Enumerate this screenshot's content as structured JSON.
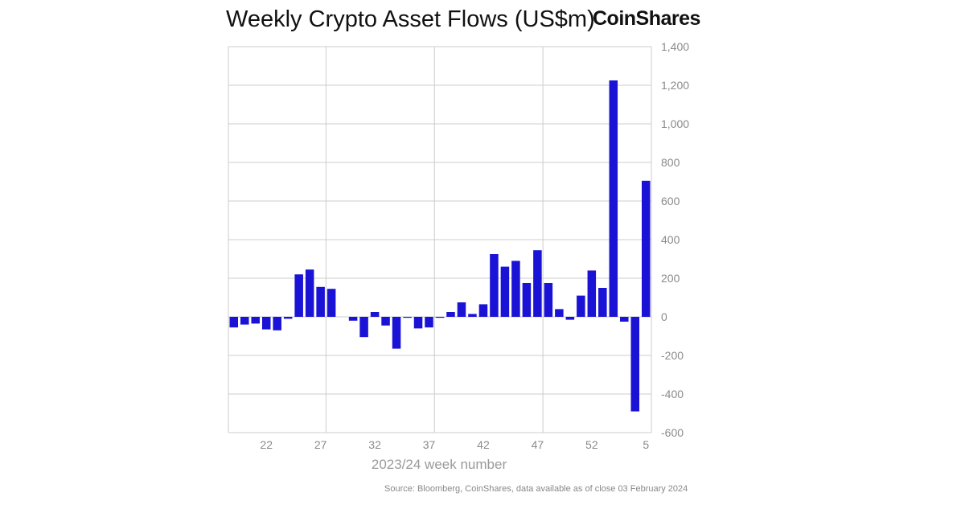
{
  "header": {
    "title": "Weekly Crypto Asset Flows (US$m)",
    "brand": "CoinShares"
  },
  "footer": {
    "source": "Source: Bloomberg, CoinShares, data available as of close 03 February 2024"
  },
  "colors": {
    "bar": "#1a13d6",
    "grid": "#cccccc",
    "tick_text": "#8a8a8a",
    "xlabel_text": "#9a9a9a"
  },
  "chart_data": {
    "type": "bar",
    "title": "Weekly Crypto Asset Flows (US$m)",
    "xlabel": "2023/24 week number",
    "ylabel": "",
    "ylim": [
      -600,
      1400
    ],
    "yticks": [
      1400,
      1200,
      1000,
      800,
      600,
      400,
      200,
      0,
      -200,
      -400,
      -600
    ],
    "ytick_labels": [
      "1,400",
      "1,200",
      "1,000",
      "800",
      "600",
      "400",
      "200",
      "0",
      "-200",
      "-400",
      "-600"
    ],
    "xtick_labels": [
      {
        "label": "22",
        "index": 3
      },
      {
        "label": "27",
        "index": 8
      },
      {
        "label": "32",
        "index": 13
      },
      {
        "label": "37",
        "index": 18
      },
      {
        "label": "42",
        "index": 23
      },
      {
        "label": "47",
        "index": 28
      },
      {
        "label": "52",
        "index": 33
      },
      {
        "label": "5",
        "index": 38
      }
    ],
    "grid": true,
    "y_axis_side": "right",
    "categories": [
      "19",
      "20",
      "21",
      "22",
      "23",
      "24",
      "25",
      "26",
      "27",
      "28",
      "29",
      "30",
      "31",
      "32",
      "33",
      "34",
      "35",
      "36",
      "37",
      "38",
      "39",
      "40",
      "41",
      "42",
      "43",
      "44",
      "45",
      "46",
      "47",
      "48",
      "49",
      "50",
      "51",
      "52",
      "1",
      "2",
      "3",
      "4",
      "5"
    ],
    "values": [
      -55,
      -40,
      -35,
      -65,
      -70,
      -10,
      220,
      245,
      155,
      145,
      0,
      -20,
      -105,
      25,
      -45,
      -165,
      -5,
      -60,
      -55,
      -5,
      25,
      75,
      15,
      65,
      325,
      260,
      290,
      175,
      345,
      175,
      40,
      -15,
      110,
      240,
      150,
      1225,
      -25,
      -490,
      705
    ]
  }
}
